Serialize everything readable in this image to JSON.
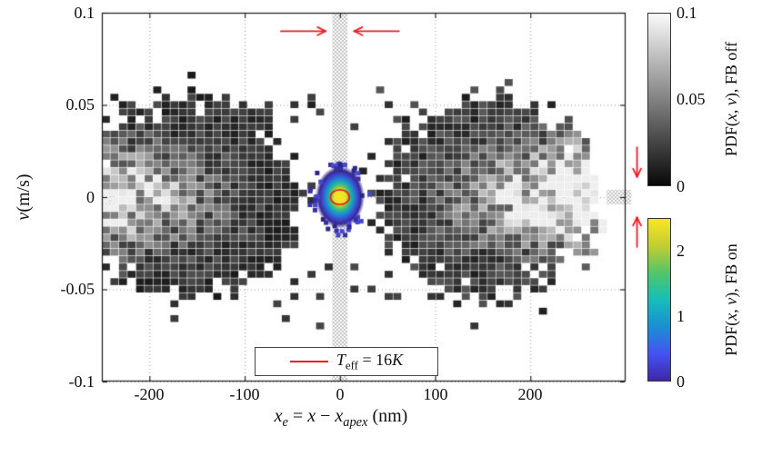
{
  "chart_data": {
    "type": "heatmap",
    "xlabel": "x_e = x - x_apex (nm)",
    "ylabel": "v (m/s)",
    "xlim": [
      -250,
      300
    ],
    "ylim": [
      -0.1,
      0.1
    ],
    "x_ticks": [
      -200,
      -100,
      0,
      100,
      200
    ],
    "y_ticks": [
      0.1,
      0.05,
      0,
      -0.05,
      -0.1
    ],
    "grid": "dotted major gridlines, box on, ticks inward",
    "colorbars": [
      {
        "id": "fb_off",
        "label": "PDF(x, v), FB off",
        "colormap": "gray",
        "range": [
          0,
          0.1
        ],
        "ticks": [
          0,
          0.05,
          0.1
        ]
      },
      {
        "id": "fb_on",
        "label": "PDF(x, v), FB on",
        "colormap": "parula",
        "range": [
          0,
          2.5
        ],
        "ticks": [
          0,
          1,
          2
        ]
      }
    ],
    "legend": {
      "position": "south-center",
      "entries": [
        {
          "label": "T_eff = 16K",
          "style": "line",
          "color": "#ed1c24"
        }
      ]
    },
    "series": [
      {
        "name": "PDF(x,v) feedback off",
        "render_style": "grayscale 2D histogram, bin ~9 nm x 0.004 m/s",
        "structure": "two broad lobes centered near x = -155 nm and x = +155 nm spanning |x| ~ 35-275 nm and |v| < ~0.06 m/s; PDF largest (~0.1, white) near the outer turning points at v ~ 0 (brightest arc near x ~ +240 nm), mid-gray patch near x ~ -170 nm, dark (~0.02) elsewhere; sparse scattered dark bins bridge the lobes near |v| ~ 0.05 m/s; faint hatched band along x ~ 0 and along v = 0 at the plot edges",
        "pdf_range": [
          0,
          0.1
        ]
      },
      {
        "name": "PDF(x,v) feedback on",
        "render_style": "parula-colored narrow peak",
        "structure": "single concentrated peak at (x,v) = (0,0), extent ~ +/-26 nm x +/-0.017 m/s, yellow core, green/cyan/blue shells, scattered dark-blue bins at the periphery, peak PDF ~ 2.5",
        "pdf_range": [
          0,
          2.5
        ]
      }
    ],
    "annotations": {
      "arrows": [
        {
          "name": "top-left-inward",
          "dir": "right",
          "v": 0.09,
          "from_nm": -62,
          "to_nm": -15
        },
        {
          "name": "top-right-inward",
          "dir": "left",
          "v": 0.09,
          "from_nm": 62,
          "to_nm": 15
        },
        {
          "name": "right-upper-inward",
          "dir": "down",
          "x_nm": 312,
          "from_v": 0.027,
          "to_v": 0.011
        },
        {
          "name": "right-lower-inward",
          "dir": "up",
          "x_nm": 312,
          "from_v": -0.027,
          "to_v": -0.011
        }
      ],
      "ellipse": {
        "center": [
          0,
          0
        ],
        "rx_nm": 10,
        "rv": 0.004,
        "color": "#ed1c24",
        "label": "T_eff = 16K thermal ellipse"
      },
      "hatch_bands": [
        {
          "axis": "x",
          "center_nm": 0,
          "halfwidth_nm": 8
        },
        {
          "axis": "v",
          "center": 0,
          "half": 0.004,
          "x_from": -250,
          "x_to": -236
        },
        {
          "axis": "v",
          "center": 0,
          "half": 0.004,
          "x_from": 280,
          "x_to": 306
        }
      ]
    },
    "render": {
      "seed": 11,
      "bin_x_nm": 9,
      "bin_v": 0.004,
      "lobe_center_nm": 155,
      "lobe_ax_nm": 118,
      "lobe_av": 0.057,
      "edge_sharpness": 7,
      "bridge_amp": 0.32,
      "bridge_v": 0.052,
      "bridge_vw": 0.018,
      "bridge_xw": 80,
      "val_base": 0.02,
      "val_amp": 0.085,
      "val_vscale": 0.026,
      "val_x0": 70,
      "val_xs": 170,
      "val_pow": 1.3,
      "right_boost": 1.18,
      "blob_rx_nm": 26,
      "blob_rv": 0.017,
      "blob_stops": [
        [
          0,
          "#fbe723"
        ],
        [
          0.24,
          "#e9e426"
        ],
        [
          0.34,
          "#79c94a"
        ],
        [
          0.46,
          "#1db3a7"
        ],
        [
          0.58,
          "#1f86d1"
        ],
        [
          0.72,
          "#4046cf"
        ],
        [
          0.85,
          "#35288f"
        ],
        [
          1,
          "rgba(53,40,143,0)"
        ]
      ],
      "blue_bin_colors": [
        "#39309f",
        "#2e2687",
        "#4548cf"
      ],
      "gray_stops": [
        "#080808",
        "#fbfbfb"
      ],
      "parula_stops": [
        "#3e26a8",
        "#4453f2",
        "#1b8fd1",
        "#15bdba",
        "#53c568",
        "#c2cc33",
        "#f9e721"
      ],
      "colors": {
        "red": "#ed1c24",
        "grid": "#9a9a9a",
        "box": "#1a1a1a"
      }
    }
  },
  "figure": {
    "y_tick_labels": [
      "0.1",
      "0.05",
      "0",
      "-0.05",
      "-0.1"
    ],
    "x_tick_labels": [
      "-200",
      "-100",
      "0",
      "100",
      "200"
    ],
    "xlabel_parts": {
      "v1": "x",
      "s1": "e",
      "m1": " = ",
      "v2": "x",
      "m2": " − ",
      "v3": "x",
      "s2": "apex",
      "m3": " (nm)"
    },
    "ylabel_parts": {
      "v": "v",
      "unit": "(m/s)"
    },
    "cb_off": {
      "tick_top": "0.1",
      "tick_mid": "0.05",
      "tick_bot": "0",
      "label_parts": {
        "p1": "PDF(",
        "x": "x",
        "c": ", ",
        "v": "v",
        "p2": "), FB off"
      }
    },
    "cb_on": {
      "tick_top": "2",
      "tick_mid": "1",
      "tick_bot": "0",
      "label_parts": {
        "p1": "PDF(",
        "x": "x",
        "c": ", ",
        "v": "v",
        "p2": "), FB on"
      }
    },
    "legend": {
      "var": "T",
      "sub": "eff",
      "eq": " = 16",
      "unit": "K"
    }
  }
}
